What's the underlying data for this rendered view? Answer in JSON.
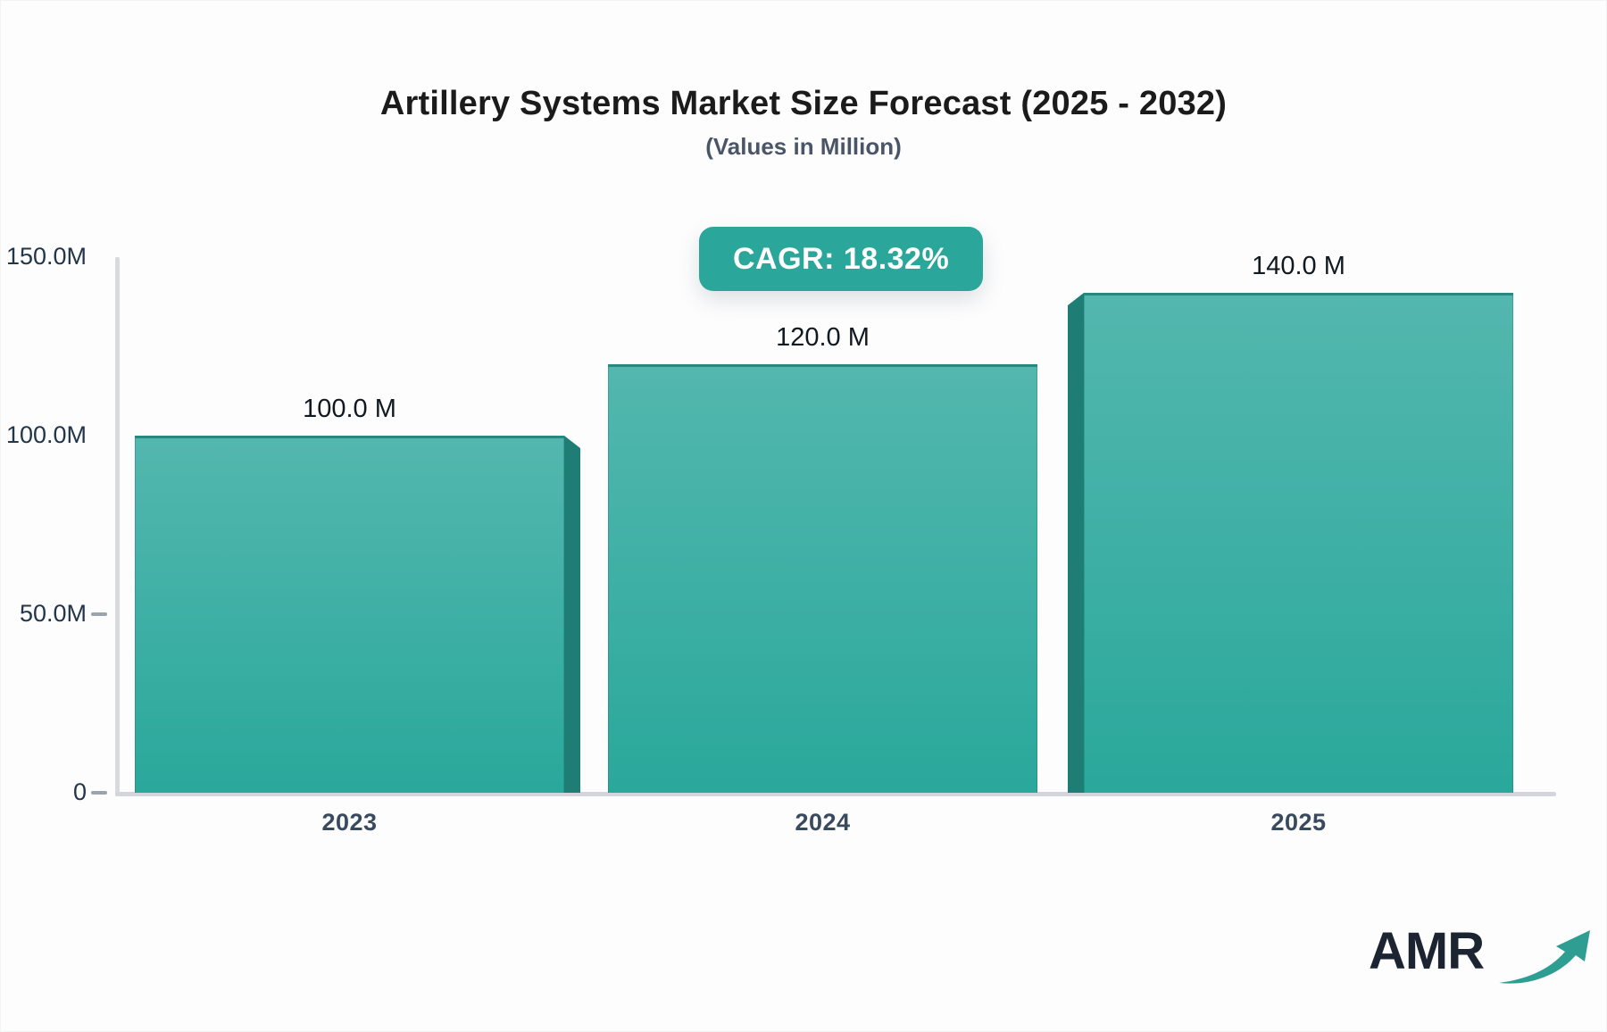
{
  "chart_data": {
    "type": "bar",
    "title": "Artillery Systems Market Size Forecast (2025 - 2032)",
    "subtitle": "(Values in Million)",
    "cagr_label": "CAGR: 18.32%",
    "categories": [
      "2023",
      "2024",
      "2025"
    ],
    "values": [
      100,
      120,
      140
    ],
    "value_labels": [
      "100.0 M",
      "120.0 M",
      "140.0 M"
    ],
    "yticks": [
      {
        "label": "150.0M",
        "value": 150
      },
      {
        "label": "100.0M",
        "value": 100
      },
      {
        "label": "50.0M",
        "value": 50
      },
      {
        "label": "0",
        "value": 0
      }
    ],
    "ylim": [
      0,
      150
    ],
    "unit": "Million",
    "grid": "off",
    "legend_position": "none",
    "colors": {
      "bar_top": "#53b7ae",
      "bar_bottom": "#2aa89b",
      "bar_side": "#1e7d75",
      "bar_edge": "#268981",
      "badge_bg": "#2ba69a",
      "badge_text": "#ffffff",
      "axis_line": "#d5d8de",
      "tick_text": "#22364a",
      "value_text": "#101820",
      "title_text": "#1b1b1b",
      "subtitle_text": "#4a5668",
      "logo_navy": "#1b2430",
      "logo_teal": "#2e9d92"
    }
  },
  "branding": {
    "logo_text": "AMR"
  }
}
